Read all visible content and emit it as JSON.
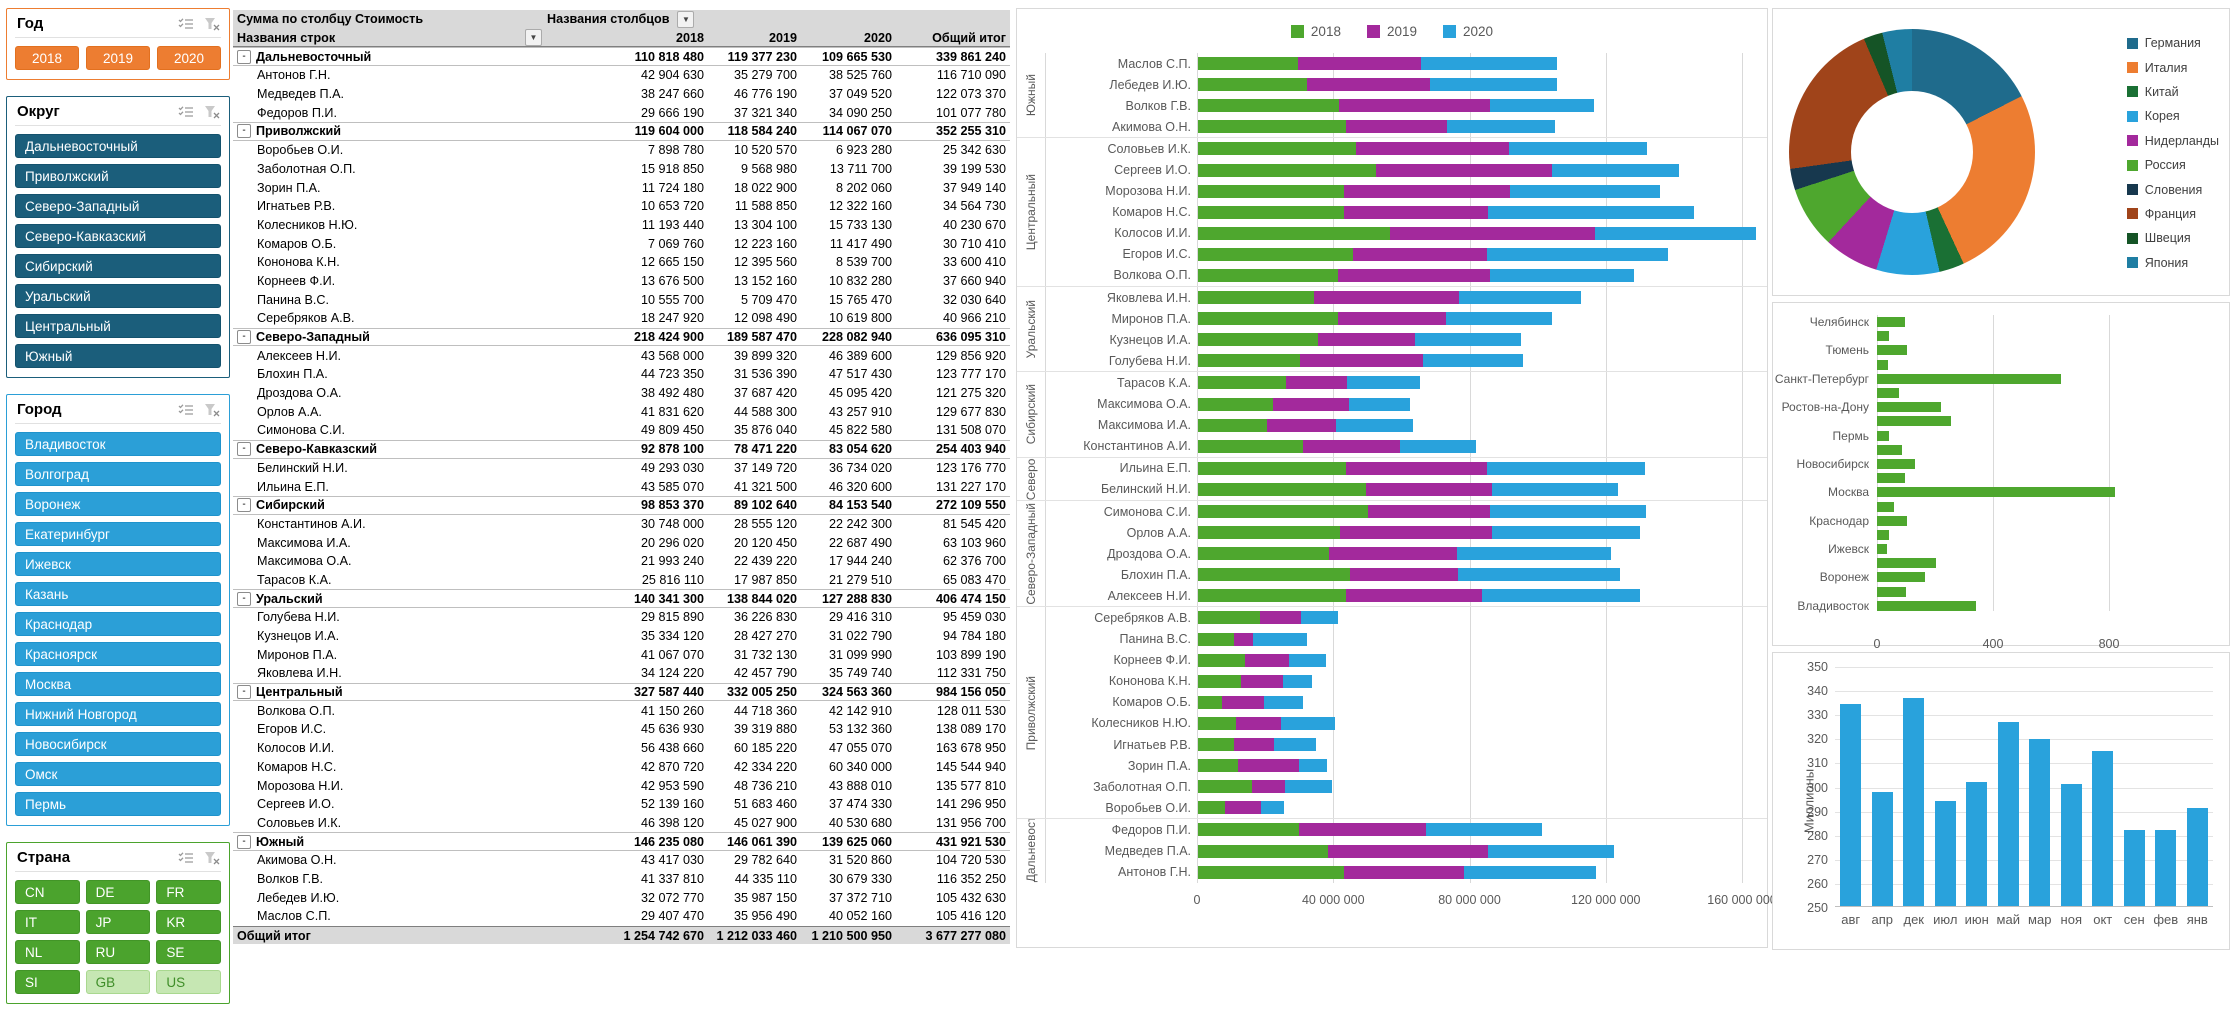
{
  "slicers": {
    "year": {
      "title": "Год",
      "color": "#ed7d31",
      "items": [
        {
          "label": "2018",
          "selected": true
        },
        {
          "label": "2019",
          "selected": true
        },
        {
          "label": "2020",
          "selected": true
        }
      ]
    },
    "district": {
      "title": "Округ",
      "color": "#1b5e7b",
      "items": [
        {
          "label": "Дальневосточный",
          "selected": true
        },
        {
          "label": "Приволжский",
          "selected": true
        },
        {
          "label": "Северо-Западный",
          "selected": true
        },
        {
          "label": "Северо-Кавказский",
          "selected": true
        },
        {
          "label": "Сибирский",
          "selected": true
        },
        {
          "label": "Уральский",
          "selected": true
        },
        {
          "label": "Центральный",
          "selected": true
        },
        {
          "label": "Южный",
          "selected": true
        }
      ]
    },
    "city": {
      "title": "Город",
      "color": "#2b9fd7",
      "items": [
        {
          "label": "Владивосток",
          "selected": true
        },
        {
          "label": "Волгоград",
          "selected": true
        },
        {
          "label": "Воронеж",
          "selected": true
        },
        {
          "label": "Екатеринбург",
          "selected": true
        },
        {
          "label": "Ижевск",
          "selected": true
        },
        {
          "label": "Казань",
          "selected": true
        },
        {
          "label": "Краснодар",
          "selected": true
        },
        {
          "label": "Красноярск",
          "selected": true
        },
        {
          "label": "Москва",
          "selected": true
        },
        {
          "label": "Нижний Новгород",
          "selected": true
        },
        {
          "label": "Новосибирск",
          "selected": true
        },
        {
          "label": "Омск",
          "selected": true
        },
        {
          "label": "Пермь",
          "selected": true
        }
      ]
    },
    "country": {
      "title": "Страна",
      "color": "#4ba32d",
      "items": [
        {
          "label": "CN",
          "selected": true
        },
        {
          "label": "DE",
          "selected": true
        },
        {
          "label": "FR",
          "selected": true
        },
        {
          "label": "IT",
          "selected": true
        },
        {
          "label": "JP",
          "selected": true
        },
        {
          "label": "KR",
          "selected": true
        },
        {
          "label": "NL",
          "selected": true
        },
        {
          "label": "RU",
          "selected": true
        },
        {
          "label": "SE",
          "selected": true
        },
        {
          "label": "SI",
          "selected": true
        },
        {
          "label": "GB",
          "selected": false
        },
        {
          "label": "US",
          "selected": false
        }
      ]
    }
  },
  "pivot": {
    "title_cell": "Сумма по столбцу Стоимость",
    "columns_header": "Названия столбцов",
    "rows_header": "Названия строк",
    "col_labels": [
      "2018",
      "2019",
      "2020",
      "Общий итог"
    ],
    "grand_total_label": "Общий итог",
    "grand_totals": [
      1254742670,
      1212033460,
      1210500950,
      3677277080
    ],
    "groups": [
      {
        "name": "Дальневосточный",
        "totals": [
          110818480,
          119377230,
          109665530,
          339861240
        ],
        "rows": [
          {
            "name": "Антонов Г.Н.",
            "values": [
              42904630,
              35279700,
              38525760,
              116710090
            ]
          },
          {
            "name": "Медведев П.А.",
            "values": [
              38247660,
              46776190,
              37049520,
              122073370
            ]
          },
          {
            "name": "Федоров П.И.",
            "values": [
              29666190,
              37321340,
              34090250,
              101077780
            ]
          }
        ]
      },
      {
        "name": "Приволжский",
        "totals": [
          119604000,
          118584240,
          114067070,
          352255310
        ],
        "rows": [
          {
            "name": "Воробьев О.И.",
            "values": [
              7898780,
              10520570,
              6923280,
              25342630
            ]
          },
          {
            "name": "Заболотная О.П.",
            "values": [
              15918850,
              9568980,
              13711700,
              39199530
            ]
          },
          {
            "name": "Зорин П.А.",
            "values": [
              11724180,
              18022900,
              8202060,
              37949140
            ]
          },
          {
            "name": "Игнатьев Р.В.",
            "values": [
              10653720,
              11588850,
              12322160,
              34564730
            ]
          },
          {
            "name": "Колесников Н.Ю.",
            "values": [
              11193440,
              13304100,
              15733130,
              40230670
            ]
          },
          {
            "name": "Комаров О.Б.",
            "values": [
              7069760,
              12223160,
              11417490,
              30710410
            ]
          },
          {
            "name": "Кононова К.Н.",
            "values": [
              12665150,
              12395560,
              8539700,
              33600410
            ]
          },
          {
            "name": "Корнеев Ф.И.",
            "values": [
              13676500,
              13152160,
              10832280,
              37660940
            ]
          },
          {
            "name": "Панина В.С.",
            "values": [
              10555700,
              5709470,
              15765470,
              32030640
            ]
          },
          {
            "name": "Серебряков А.В.",
            "values": [
              18247920,
              12098490,
              10619800,
              40966210
            ]
          }
        ]
      },
      {
        "name": "Северо-Западный",
        "totals": [
          218424900,
          189587470,
          228082940,
          636095310
        ],
        "rows": [
          {
            "name": "Алексеев Н.И.",
            "values": [
              43568000,
              39899320,
              46389600,
              129856920
            ]
          },
          {
            "name": "Блохин П.А.",
            "values": [
              44723350,
              31536390,
              47517430,
              123777170
            ]
          },
          {
            "name": "Дроздова О.А.",
            "values": [
              38492480,
              37687420,
              45095420,
              121275320
            ]
          },
          {
            "name": "Орлов А.А.",
            "values": [
              41831620,
              44588300,
              43257910,
              129677830
            ]
          },
          {
            "name": "Симонова С.И.",
            "values": [
              49809450,
              35876040,
              45822580,
              131508070
            ]
          }
        ]
      },
      {
        "name": "Северо-Кавказский",
        "totals": [
          92878100,
          78471220,
          83054620,
          254403940
        ],
        "rows": [
          {
            "name": "Белинский Н.И.",
            "values": [
              49293030,
              37149720,
              36734020,
              123176770
            ]
          },
          {
            "name": "Ильина Е.П.",
            "values": [
              43585070,
              41321500,
              46320600,
              131227170
            ]
          }
        ]
      },
      {
        "name": "Сибирский",
        "totals": [
          98853370,
          89102640,
          84153540,
          272109550
        ],
        "rows": [
          {
            "name": "Константинов А.И.",
            "values": [
              30748000,
              28555120,
              22242300,
              81545420
            ]
          },
          {
            "name": "Максимова И.А.",
            "values": [
              20296020,
              20120450,
              22687490,
              63103960
            ]
          },
          {
            "name": "Максимова О.А.",
            "values": [
              21993240,
              22439220,
              17944240,
              62376700
            ]
          },
          {
            "name": "Тарасов К.А.",
            "values": [
              25816110,
              17987850,
              21279510,
              65083470
            ]
          }
        ]
      },
      {
        "name": "Уральский",
        "totals": [
          140341300,
          138844020,
          127288830,
          406474150
        ],
        "rows": [
          {
            "name": "Голубева Н.И.",
            "values": [
              29815890,
              36226830,
              29416310,
              95459030
            ]
          },
          {
            "name": "Кузнецов И.А.",
            "values": [
              35334120,
              28427270,
              31022790,
              94784180
            ]
          },
          {
            "name": "Миронов П.А.",
            "values": [
              41067070,
              31732130,
              31099990,
              103899190
            ]
          },
          {
            "name": "Яковлева И.Н.",
            "values": [
              34124220,
              42457790,
              35749740,
              112331750
            ]
          }
        ]
      },
      {
        "name": "Центральный",
        "totals": [
          327587440,
          332005250,
          324563360,
          984156050
        ],
        "rows": [
          {
            "name": "Волкова О.П.",
            "values": [
              41150260,
              44718360,
              42142910,
              128011530
            ]
          },
          {
            "name": "Егоров И.С.",
            "values": [
              45636930,
              39319880,
              53132360,
              138089170
            ]
          },
          {
            "name": "Колосов И.И.",
            "values": [
              56438660,
              60185220,
              47055070,
              163678950
            ]
          },
          {
            "name": "Комаров Н.С.",
            "values": [
              42870720,
              42334220,
              60340000,
              145544940
            ]
          },
          {
            "name": "Морозова Н.И.",
            "values": [
              42953590,
              48736210,
              43888010,
              135577810
            ]
          },
          {
            "name": "Сергеев И.О.",
            "values": [
              52139160,
              51683460,
              37474330,
              141296950
            ]
          },
          {
            "name": "Соловьев И.К.",
            "values": [
              46398120,
              45027900,
              40530680,
              131956700
            ]
          }
        ]
      },
      {
        "name": "Южный",
        "totals": [
          146235080,
          146061390,
          139625060,
          431921530
        ],
        "rows": [
          {
            "name": "Акимова О.Н.",
            "values": [
              43417030,
              29782640,
              31520860,
              104720530
            ]
          },
          {
            "name": "Волков Г.В.",
            "values": [
              41337810,
              44335110,
              30679330,
              116352250
            ]
          },
          {
            "name": "Лебедев И.Ю.",
            "values": [
              32072770,
              35987150,
              37372710,
              105432630
            ]
          },
          {
            "name": "Маслов С.П.",
            "values": [
              29407470,
              35956490,
              40052160,
              105416120
            ]
          }
        ]
      }
    ]
  },
  "chart_data": [
    {
      "type": "bar",
      "subtype": "horizontal-stacked",
      "title": "",
      "legend": [
        {
          "label": "2018",
          "color": "#4ea72e"
        },
        {
          "label": "2019",
          "color": "#a3299c"
        },
        {
          "label": "2020",
          "color": "#29a2dc"
        }
      ],
      "x_max": 160000000,
      "x_ticks": [
        "0",
        "40 000 000",
        "80 000 000",
        "120 000 000",
        "160 000 000"
      ],
      "group_order_top_to_bottom": [
        "Южный",
        "Центральный",
        "Уральский",
        "Сибирский",
        "Северо-Кавказский",
        "Северо-Западный",
        "Приволжский",
        "Дальневосточный"
      ],
      "note": "values per person are the 2018/2019/2020 columns of pivot.groups, rows reversed within each group"
    },
    {
      "type": "pie",
      "subtype": "donut",
      "legend_position": "right",
      "slices": [
        {
          "label": "Германия",
          "percent": 17.5,
          "color": "#1f6b8c"
        },
        {
          "label": "Италия",
          "percent": 25.6,
          "color": "#ed7d31"
        },
        {
          "label": "Китай",
          "percent": 3.3,
          "color": "#1a7034"
        },
        {
          "label": "Корея",
          "percent": 8.3,
          "color": "#29a2dc"
        },
        {
          "label": "Нидерланды",
          "percent": 7.2,
          "color": "#a3299c"
        },
        {
          "label": "Россия",
          "percent": 8.1,
          "color": "#4ea72e"
        },
        {
          "label": "Словения",
          "percent": 2.8,
          "color": "#17384e"
        },
        {
          "label": "Франция",
          "percent": 20.8,
          "color": "#a0441a"
        },
        {
          "label": "Швеция",
          "percent": 2.5,
          "color": "#155426"
        },
        {
          "label": "Япония",
          "percent": 3.9,
          "color": "#1f7ea3"
        }
      ]
    },
    {
      "type": "bar",
      "subtype": "horizontal",
      "color": "#4ea72e",
      "x_ticks": [
        0,
        400,
        800
      ],
      "x_tick_labels": [
        "0",
        "400",
        "800"
      ],
      "bars": [
        {
          "label": "Челябинск",
          "value": 95
        },
        {
          "label": "",
          "value": 40
        },
        {
          "label": "Тюмень",
          "value": 105
        },
        {
          "label": "",
          "value": 38
        },
        {
          "label": "Санкт-Петербург",
          "value": 635
        },
        {
          "label": "",
          "value": 75
        },
        {
          "label": "Ростов-на-Дону",
          "value": 220
        },
        {
          "label": "",
          "value": 255
        },
        {
          "label": "Пермь",
          "value": 40
        },
        {
          "label": "",
          "value": 85
        },
        {
          "label": "Новосибирск",
          "value": 130
        },
        {
          "label": "",
          "value": 95
        },
        {
          "label": "Москва",
          "value": 820
        },
        {
          "label": "",
          "value": 60
        },
        {
          "label": "Краснодар",
          "value": 105
        },
        {
          "label": "",
          "value": 42
        },
        {
          "label": "Ижевск",
          "value": 35
        },
        {
          "label": "",
          "value": 205
        },
        {
          "label": "Воронеж",
          "value": 165
        },
        {
          "label": "",
          "value": 100
        },
        {
          "label": "Владивосток",
          "value": 340
        }
      ]
    },
    {
      "type": "bar",
      "subtype": "vertical",
      "color": "#29a2dc",
      "ylabel": "Миллионы",
      "ylim": [
        250,
        350
      ],
      "y_tick_step": 10,
      "categories": [
        "авг",
        "апр",
        "дек",
        "июл",
        "июн",
        "май",
        "мар",
        "ноя",
        "окт",
        "сен",
        "фев",
        "янв"
      ],
      "values": [
        334,
        297.5,
        336.5,
        293.5,
        301.5,
        326.5,
        319.5,
        300.5,
        314.5,
        281.5,
        281.5,
        290.5
      ]
    }
  ]
}
